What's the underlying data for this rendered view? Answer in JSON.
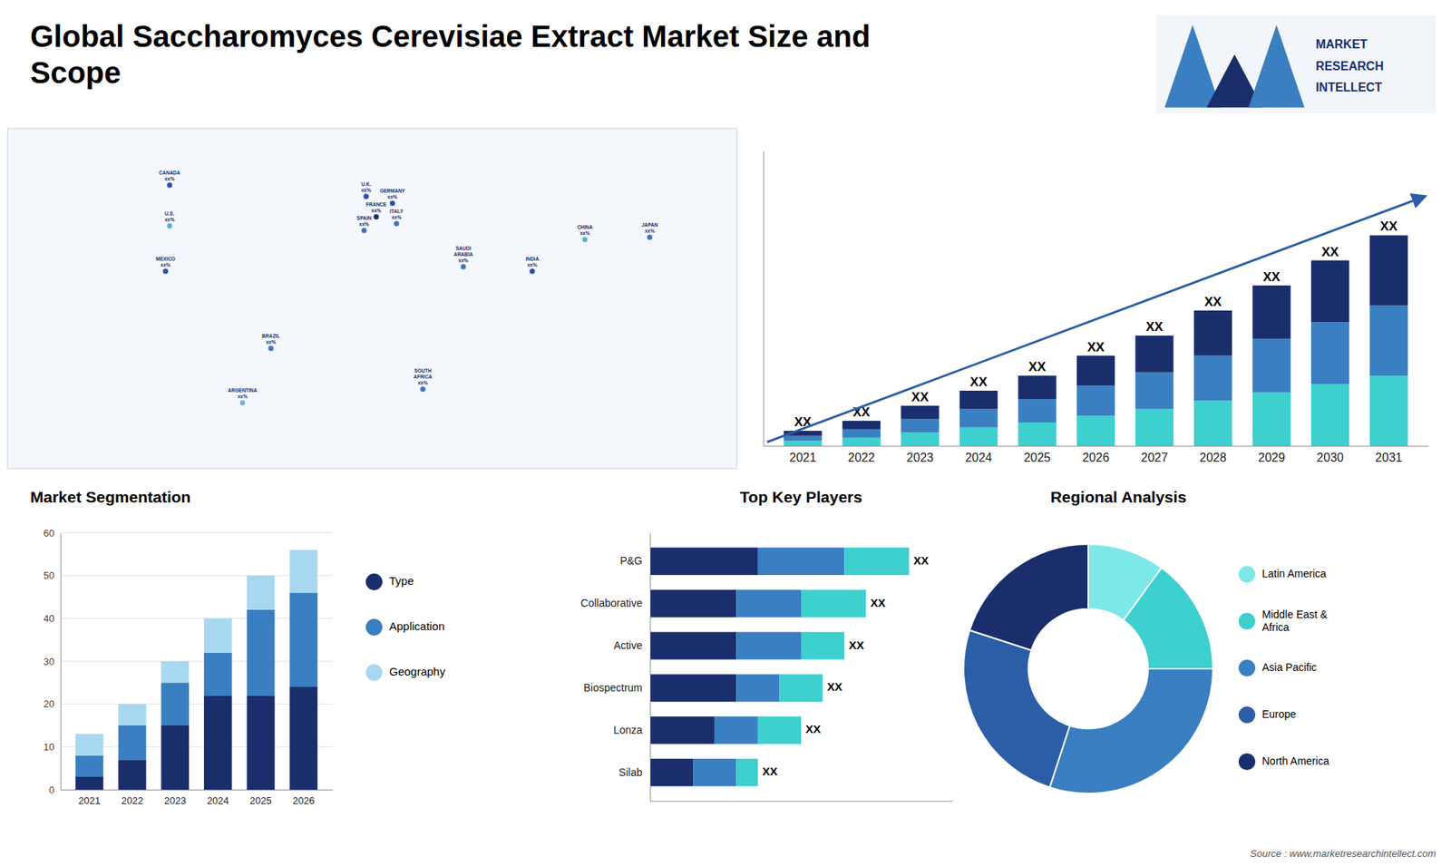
{
  "chart_data": [
    {
      "type": "bar",
      "title": "Global Saccharomyces Cerevisiae Extract Market Size and\nScope",
      "annotations": [
        "MARKET",
        "RESEARCH",
        "INTELLECT",
        "Source : www.marketresearchintellect.com"
      ],
      "categories": [
        "2021",
        "2022",
        "2023",
        "2024",
        "2025",
        "2026",
        "2027",
        "2028",
        "2029",
        "2030",
        "2031"
      ],
      "series": [
        {
          "color": "#3ecfcf",
          "values": [
            1.5,
            2.5,
            4,
            5.5,
            7,
            9,
            11,
            13.5,
            16,
            18.5,
            21
          ]
        },
        {
          "color": "#3a7fc1",
          "values": [
            1.5,
            2.5,
            4,
            5.5,
            7,
            9,
            11,
            13.5,
            16,
            18.5,
            21
          ]
        },
        {
          "color": "#1a2e6c",
          "values": [
            1.5,
            2.5,
            4,
            5.5,
            7,
            9,
            11,
            13.5,
            16,
            18.5,
            21
          ],
          "value_labels": [
            "XX",
            "XX",
            "XX",
            "XX",
            "XX",
            "XX",
            "XX",
            "XX",
            "XX",
            "XX",
            "XX"
          ]
        }
      ],
      "stacked": true,
      "ylim": [
        0,
        88.2
      ],
      "tick_labels": "x"
    },
    {
      "type": "map",
      "categories": [
        "CANADA\nxx%",
        "U.S.\nxx%",
        "MEXICO\nxx%",
        "BRAZIL\nxx%",
        "ARGENTINA\nxx%",
        "U.K.\nxx%",
        "FRANCE\nxx%",
        "SPAIN\nxx%",
        "GERMANY\nxx%",
        "ITALY\nxx%",
        "SAUDI\nARABIA\nxx%",
        "SOUTH\nAFRICA\nxx%",
        "INDIA\nxx%",
        "CHINA\nxx%",
        "JAPAN\nxx%"
      ],
      "x": [
        -100,
        -100,
        -102,
        -50,
        -64,
        -3,
        2,
        -4,
        10,
        12,
        45,
        25,
        79,
        105,
        137
      ],
      "values": [
        60,
        42,
        22,
        -12,
        -36,
        55,
        46,
        40,
        52,
        43,
        24,
        -30,
        22,
        36,
        37
      ],
      "colors": [
        "#2b4fad",
        "#5aafd4",
        "#2b4fad",
        "#4472b8",
        "#7ab0d4",
        "#2b4fad",
        "#1a2e6c",
        "#4472b8",
        "#2b4fad",
        "#4472b8",
        "#4472b8",
        "#4472b8",
        "#2b4fad",
        "#5aafd4",
        "#4472b8"
      ],
      "xlim": [
        -180,
        180
      ],
      "ylim": [
        -65,
        85
      ],
      "tick_labels": false
    },
    {
      "type": "bar",
      "title": "Market Segmentation",
      "categories": [
        "2021",
        "2022",
        "2023",
        "2024",
        "2025",
        "2026"
      ],
      "series": [
        {
          "name": "Type",
          "color": "#1a2e6c",
          "values": [
            3,
            7,
            15,
            22,
            22,
            24
          ]
        },
        {
          "name": "Application",
          "color": "#3a7fc1",
          "values": [
            5,
            8,
            10,
            10,
            20,
            22
          ]
        },
        {
          "name": "Geography",
          "color": "#a8d8ef",
          "values": [
            5,
            5,
            5,
            8,
            8,
            10
          ]
        }
      ],
      "stacked": true,
      "ylim": [
        0,
        60
      ],
      "yticks": [
        0,
        10,
        20,
        30,
        40,
        50,
        60
      ],
      "grid": true,
      "legend": "right"
    },
    {
      "type": "bar",
      "title": "Top Key Players",
      "orientation": "horizontal",
      "categories": [
        "P&G",
        "Collaborative",
        "Active",
        "Biospectrum",
        "Lonza",
        "Silab"
      ],
      "series": [
        {
          "color": "#1a2e6c",
          "values": [
            5,
            4,
            4,
            4,
            3,
            2
          ]
        },
        {
          "color": "#3a7fc1",
          "values": [
            4,
            3,
            3,
            2,
            2,
            2
          ]
        },
        {
          "color": "#3ecfcf",
          "values": [
            3,
            3,
            2,
            2,
            2,
            1
          ],
          "value_labels": [
            "XX",
            "XX",
            "XX",
            "XX",
            "XX",
            "XX"
          ]
        }
      ],
      "stacked": true,
      "xlim": [
        0,
        14
      ],
      "tick_labels": "y"
    },
    {
      "type": "pie",
      "title": "Regional Analysis",
      "categories": [
        "Latin America",
        "Middle East &\nAfrica",
        "Asia Pacific",
        "Europe",
        "North America"
      ],
      "values": [
        10,
        15,
        30,
        25,
        20
      ],
      "colors": [
        "#7de8e8",
        "#3ecfcf",
        "#3a7fc1",
        "#2b5ea7",
        "#1a2e6c"
      ],
      "legend": "right"
    }
  ]
}
